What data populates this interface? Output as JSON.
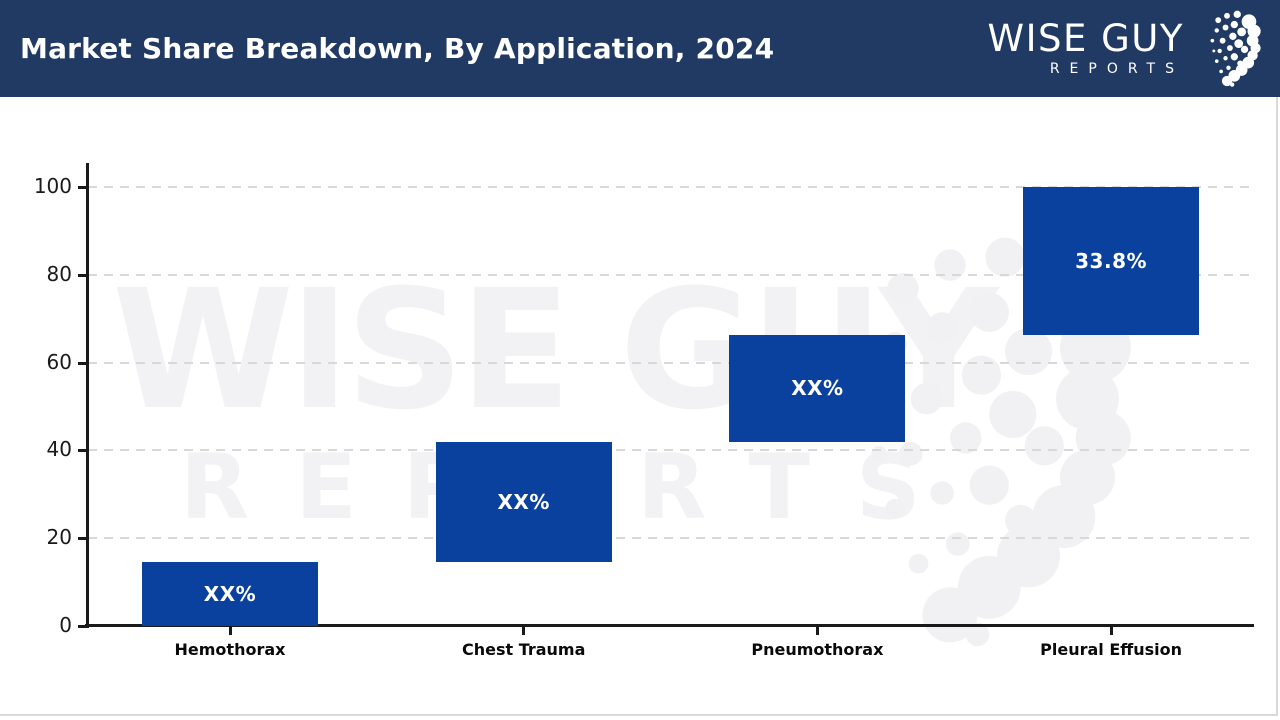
{
  "header": {
    "title": "Market Share Breakdown, By Application, 2024",
    "logo": {
      "line1": "WISE GUY",
      "line2": "REPORTS"
    }
  },
  "watermark": {
    "line1": "WISE GUY",
    "line2": "REPORTS"
  },
  "chart_data": {
    "type": "bar",
    "subtype": "floating-waterfall",
    "title": "Market Share Breakdown, By Application, 2024",
    "categories": [
      "Hemothorax",
      "Chest Trauma",
      "Pneumothorax",
      "Pleural Effusion"
    ],
    "segments": [
      {
        "category": "Hemothorax",
        "start": 0,
        "end": 14.5,
        "label": "XX%"
      },
      {
        "category": "Chest Trauma",
        "start": 14.5,
        "end": 42,
        "label": "XX%"
      },
      {
        "category": "Pneumothorax",
        "start": 42,
        "end": 66.2,
        "label": "XX%"
      },
      {
        "category": "Pleural Effusion",
        "start": 66.2,
        "end": 100,
        "label": "33.8%"
      }
    ],
    "xlabel": "",
    "ylabel": "",
    "ylim": [
      0,
      105
    ],
    "yticks": [
      0,
      20,
      40,
      60,
      80,
      100
    ],
    "grid": "horizontal-dashed",
    "legend": "none",
    "bar_color": "#0a419e",
    "bar_label_color": "#ffffff"
  },
  "colors": {
    "header_bg": "#203a64",
    "bar": "#0a419e",
    "grid": "#d8d8d8",
    "axis": "#1a1a1a",
    "watermark": "#f2f2f4",
    "frame_line": "#d9d9d9"
  }
}
